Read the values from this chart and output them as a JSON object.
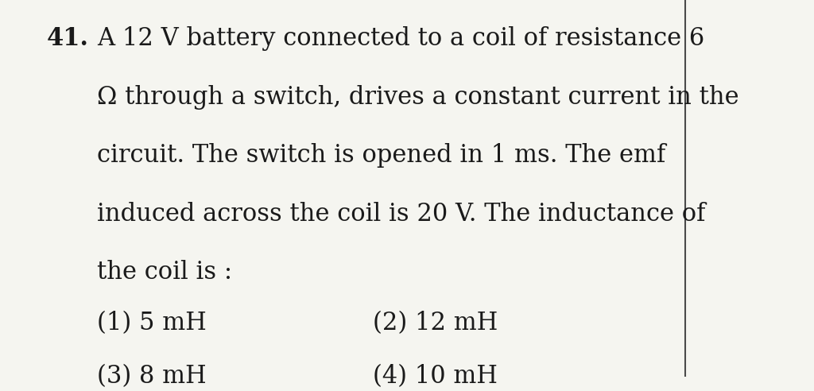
{
  "background_color": "#f5f5f0",
  "question_number": "41.",
  "question_text_lines": [
    "A 12 V battery connected to a coil of resistance 6",
    "Ω through a switch, drives a constant current in the",
    "circuit. The switch is opened in 1 ms. The emf",
    "induced across the coil is 20 V. The inductance of",
    "the coil is :"
  ],
  "options": [
    [
      "(1) 5 mH",
      "(2) 12 mH"
    ],
    [
      "(3) 8 mH",
      "(4) 10 mH"
    ]
  ],
  "font_size_question": 22,
  "font_size_options": 22,
  "text_color": "#1a1a1a",
  "right_bar_color": "#4a4a4a",
  "fig_width": 10.24,
  "fig_height": 4.92
}
